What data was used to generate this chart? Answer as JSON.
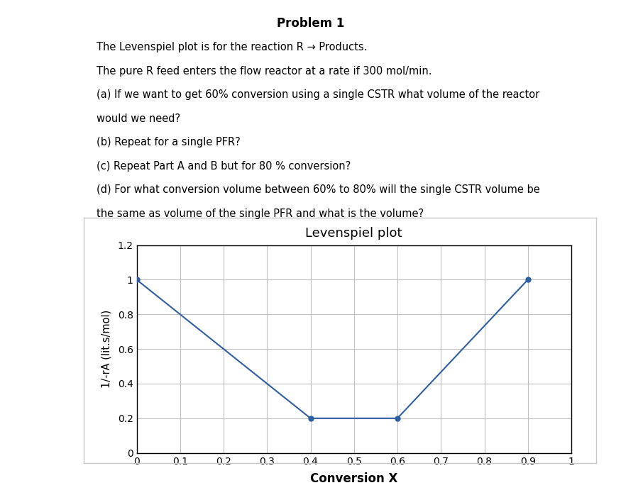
{
  "title": "Problem 1",
  "text_lines": [
    "The Levenspiel plot is for the reaction R → Products.",
    "The pure R feed enters the flow reactor at a rate if 300 mol/min.",
    "(a) If we want to get 60% conversion using a single CSTR what volume of the reactor",
    "would we need?",
    "(b) Repeat for a single PFR?",
    "(c) Repeat Part A and B but for 80 % conversion?",
    "(d) For what conversion volume between 60% to 80% will the single CSTR volume be",
    "the same as volume of the single PFR and what is the volume?"
  ],
  "plot_title": "Levenspiel plot",
  "xlabel": "Conversion X",
  "ylabel": "1/-rA (lit.s/mol)",
  "x_data": [
    0.0,
    0.4,
    0.6,
    0.9
  ],
  "y_data": [
    1.0,
    0.2,
    0.2,
    1.0
  ],
  "x_ticks": [
    0,
    0.1,
    0.2,
    0.3,
    0.4,
    0.5,
    0.6,
    0.7,
    0.8,
    0.9,
    1
  ],
  "y_ticks": [
    0,
    0.2,
    0.4,
    0.6,
    0.8,
    1.0,
    1.2
  ],
  "xlim": [
    0,
    1.0
  ],
  "ylim": [
    0,
    1.2
  ],
  "line_color": "#2E5FA3",
  "marker_color": "#2E5FA3",
  "background_color": "#ffffff",
  "plot_bg_color": "#ffffff",
  "grid_color": "#C0C0C0",
  "text_fontsize": 10.5,
  "title_fontsize": 12,
  "plot_title_fontsize": 13,
  "xlabel_fontsize": 12,
  "ylabel_fontsize": 10.5
}
